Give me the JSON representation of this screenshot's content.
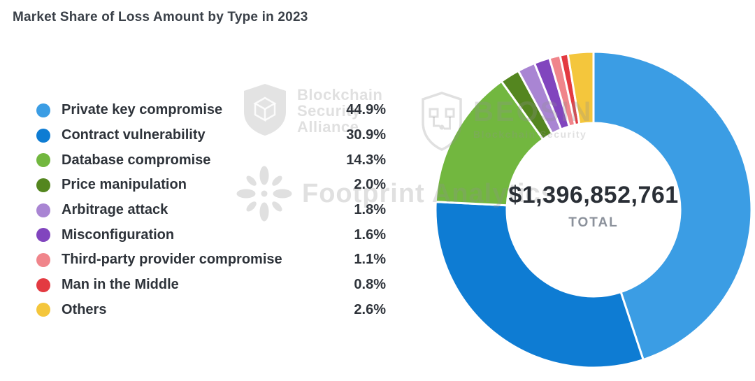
{
  "title": "Market Share of Loss Amount by Type in 2023",
  "center": {
    "total_value": "$1,396,852,761",
    "total_label": "TOTAL"
  },
  "legend": {
    "items": [
      {
        "label": "Private key compromise",
        "value": "44.9%",
        "color": "#3b9de4"
      },
      {
        "label": "Contract vulnerability",
        "value": "30.9%",
        "color": "#0e7cd3"
      },
      {
        "label": "Database compromise",
        "value": "14.3%",
        "color": "#72b73f"
      },
      {
        "label": "Price manipulation",
        "value": "2.0%",
        "color": "#54861f"
      },
      {
        "label": "Arbitrage attack",
        "value": "1.8%",
        "color": "#a985d3"
      },
      {
        "label": "Misconfiguration",
        "value": "1.6%",
        "color": "#8145be"
      },
      {
        "label": "Third-party provider compromise",
        "value": "1.1%",
        "color": "#f0858b"
      },
      {
        "label": "Man in the Middle",
        "value": "0.8%",
        "color": "#e33a41"
      },
      {
        "label": "Others",
        "value": "2.6%",
        "color": "#f4c63c"
      }
    ]
  },
  "chart_data": {
    "type": "pie",
    "subtype": "donut",
    "title": "Market Share of Loss Amount by Type in 2023",
    "legend_position": "left",
    "start_angle_deg": -90,
    "direction": "clockwise",
    "center_total": "$1,396,852,761",
    "categories": [
      "Private key compromise",
      "Contract vulnerability",
      "Database compromise",
      "Price manipulation",
      "Arbitrage attack",
      "Misconfiguration",
      "Third-party provider compromise",
      "Man in the Middle",
      "Others"
    ],
    "values": [
      44.9,
      30.9,
      14.3,
      2.0,
      1.8,
      1.6,
      1.1,
      0.8,
      2.6
    ],
    "unit": "%",
    "colors": [
      "#3b9de4",
      "#0e7cd3",
      "#72b73f",
      "#54861f",
      "#a985d3",
      "#8145be",
      "#f0858b",
      "#e33a41",
      "#f4c63c"
    ]
  },
  "watermarks": {
    "bsa": {
      "lines": [
        "Blockchain",
        "Security",
        "Alliance"
      ]
    },
    "beosin": {
      "name": "BEOSIN",
      "subtitle": "Blockchain Security"
    },
    "footprint": {
      "name": "Footprint Analytics"
    }
  }
}
